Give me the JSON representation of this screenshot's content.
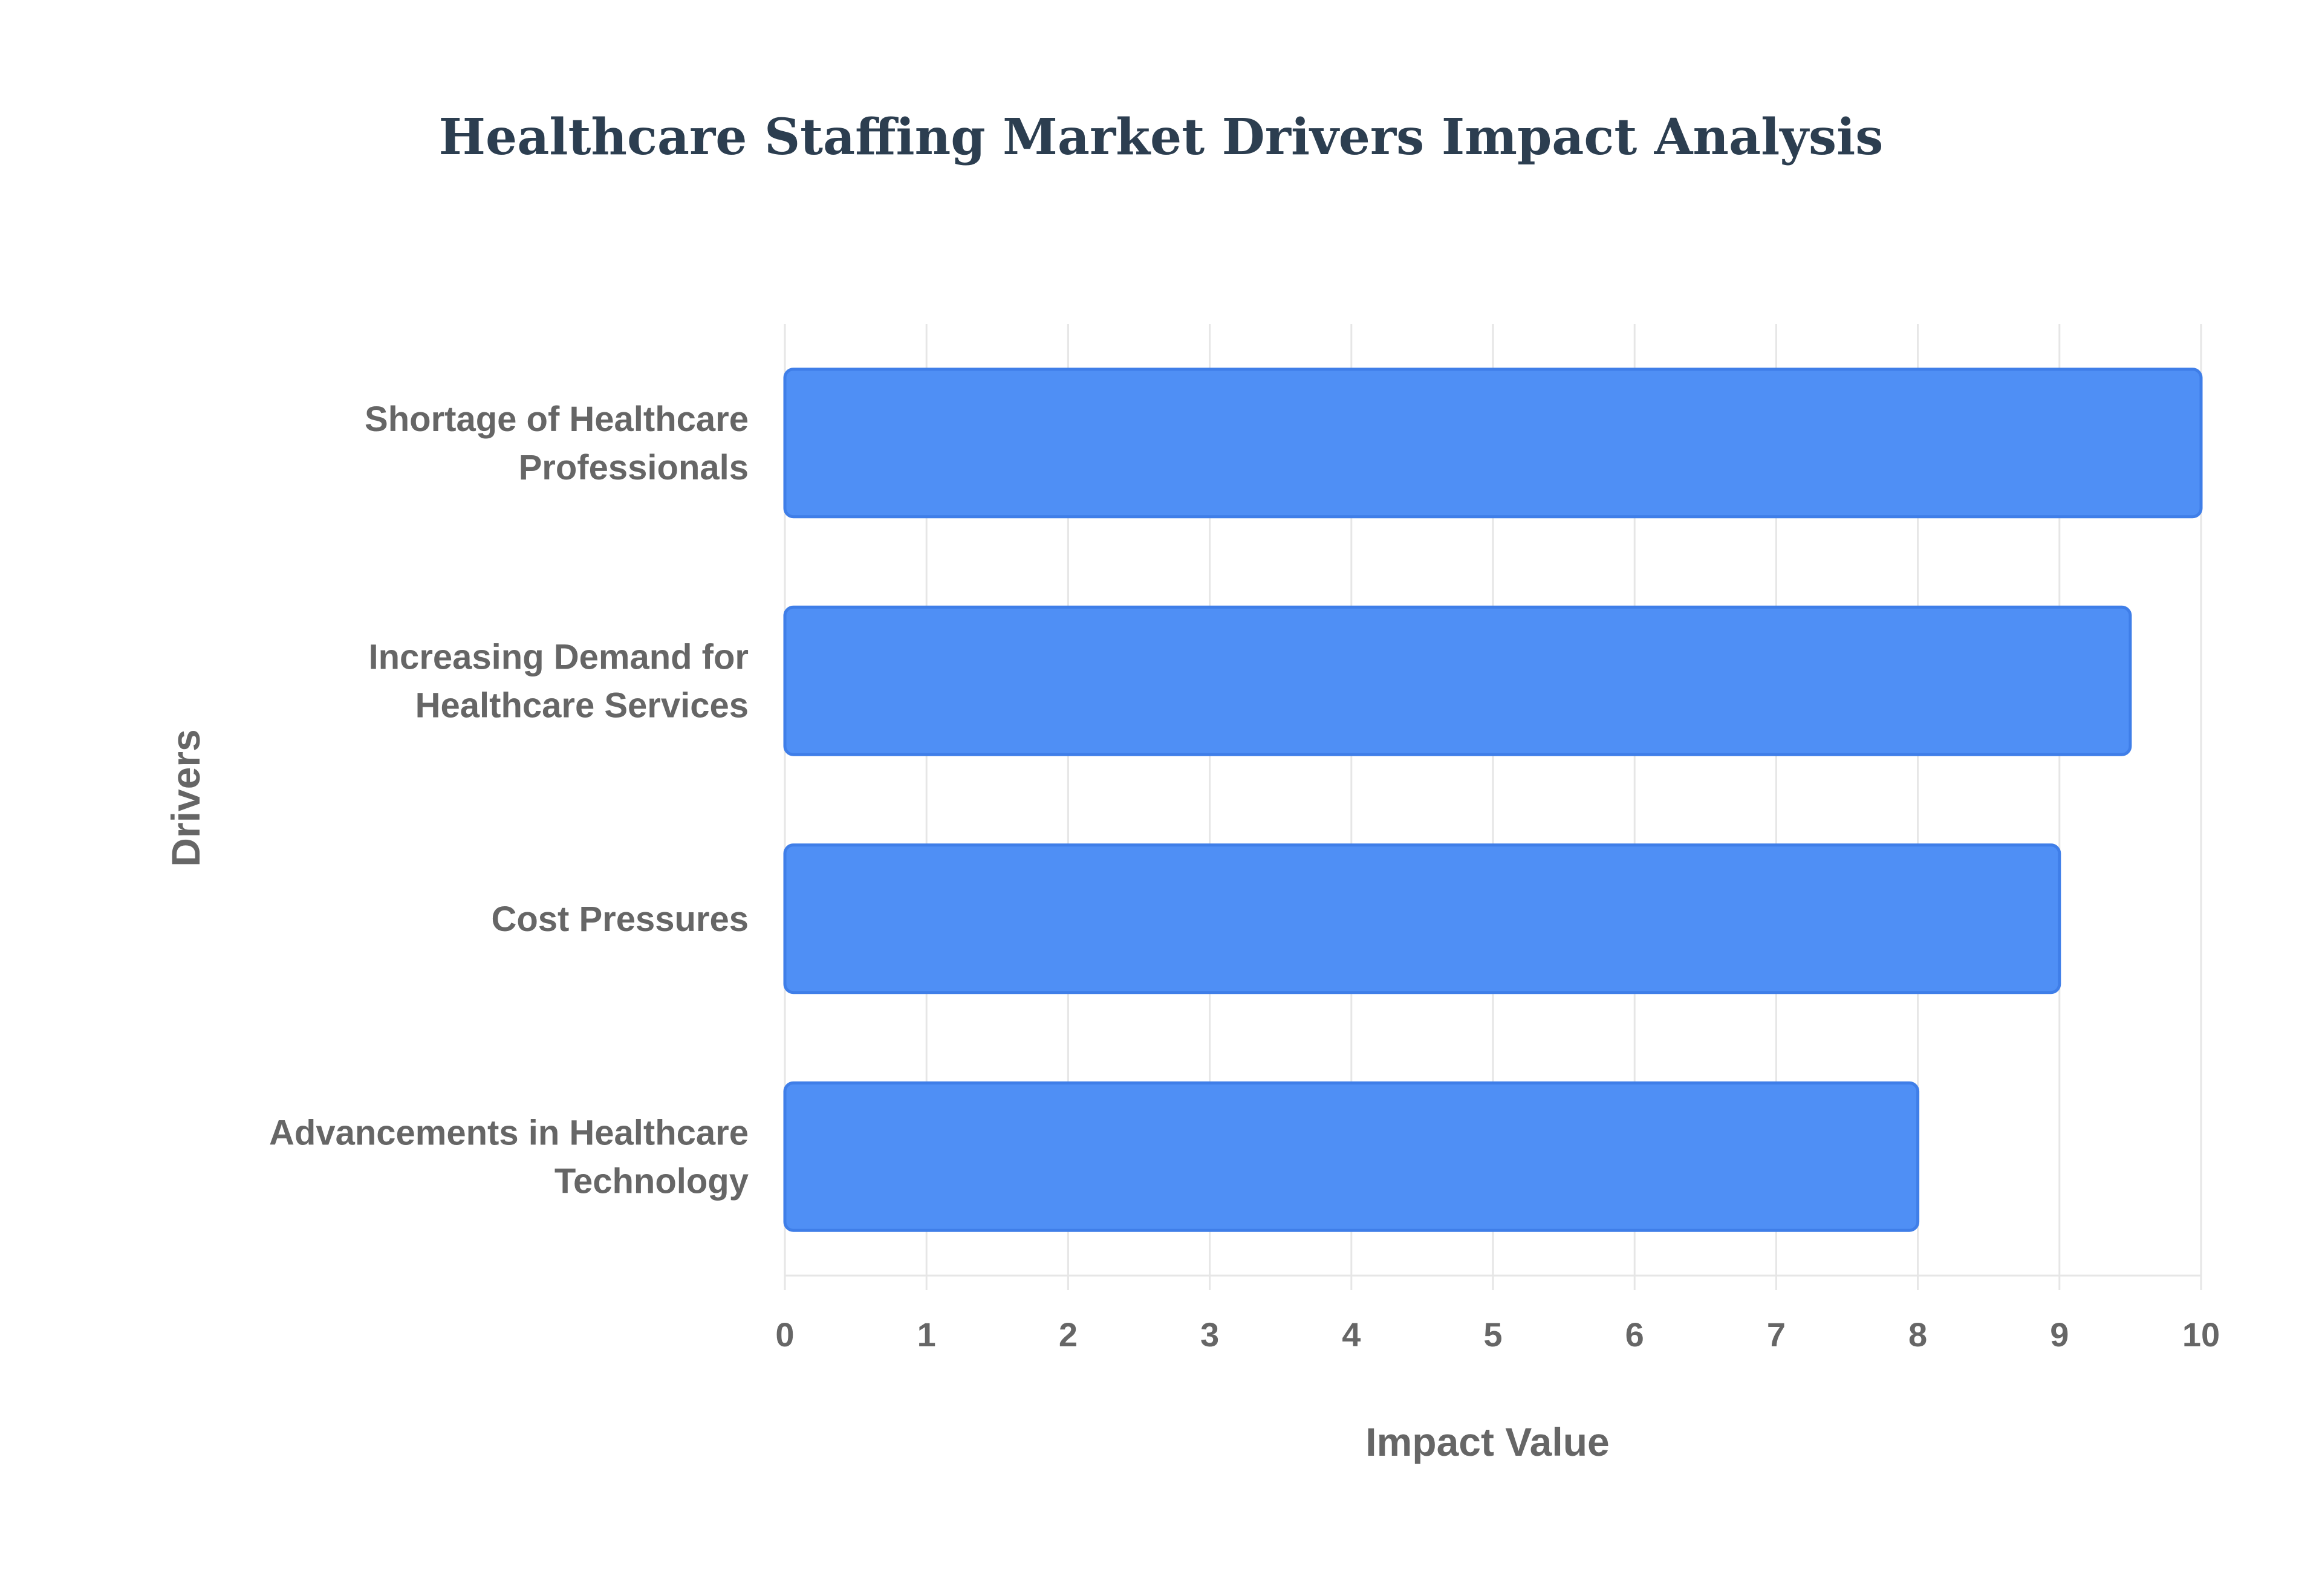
{
  "chart_data": {
    "type": "bar",
    "orientation": "horizontal",
    "title": "Healthcare Staffing Market Drivers Impact Analysis",
    "xlabel": "Impact Value",
    "ylabel": "Drivers",
    "categories": [
      [
        "Shortage of Healthcare",
        "Professionals"
      ],
      [
        "Increasing Demand for",
        "Healthcare Services"
      ],
      [
        "Cost Pressures"
      ],
      [
        "Advancements in Healthcare",
        "Technology"
      ]
    ],
    "values": [
      10,
      9.5,
      9,
      8
    ],
    "xlim": [
      0,
      10
    ],
    "xticks": [
      "0",
      "1",
      "2",
      "3",
      "4",
      "5",
      "6",
      "7",
      "8",
      "9",
      "10"
    ],
    "grid": true,
    "legend": "none",
    "colors": {
      "bar_fill": "#4f8ff5",
      "bar_stroke": "#3f7ee8",
      "title": "#2c3e50",
      "text": "#666666",
      "grid": "#e6e6e6"
    }
  }
}
